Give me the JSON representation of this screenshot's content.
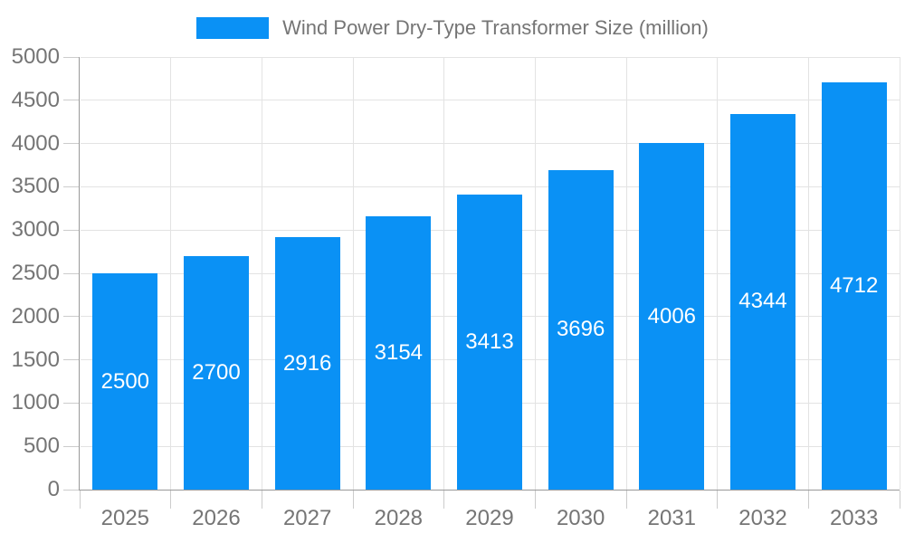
{
  "legend": {
    "label": "Wind Power Dry-Type Transformer Size (million)",
    "swatch_color": "#0a91f5"
  },
  "chart_data": {
    "type": "bar",
    "title": "Wind Power Dry-Type Transformer Size (million)",
    "categories": [
      "2025",
      "2026",
      "2027",
      "2028",
      "2029",
      "2030",
      "2031",
      "2032",
      "2033"
    ],
    "series": [
      {
        "name": "Wind Power Dry-Type Transformer Size (million)",
        "values": [
          2500,
          2700,
          2916,
          3154,
          3413,
          3696,
          4006,
          4344,
          4712
        ]
      }
    ],
    "xlabel": "",
    "ylabel": "",
    "ylim": [
      0,
      5000
    ],
    "yticks": [
      0,
      500,
      1000,
      1500,
      2000,
      2500,
      3000,
      3500,
      4000,
      4500,
      5000
    ],
    "grid": true,
    "legend_position": "top",
    "bar_color": "#0a91f5",
    "value_label_color": "#ffffff",
    "axis_text_color": "#757575",
    "axis_line_color": "#999999",
    "gridline_color": "#e3e3e3",
    "tick_color": "#cccccc"
  }
}
